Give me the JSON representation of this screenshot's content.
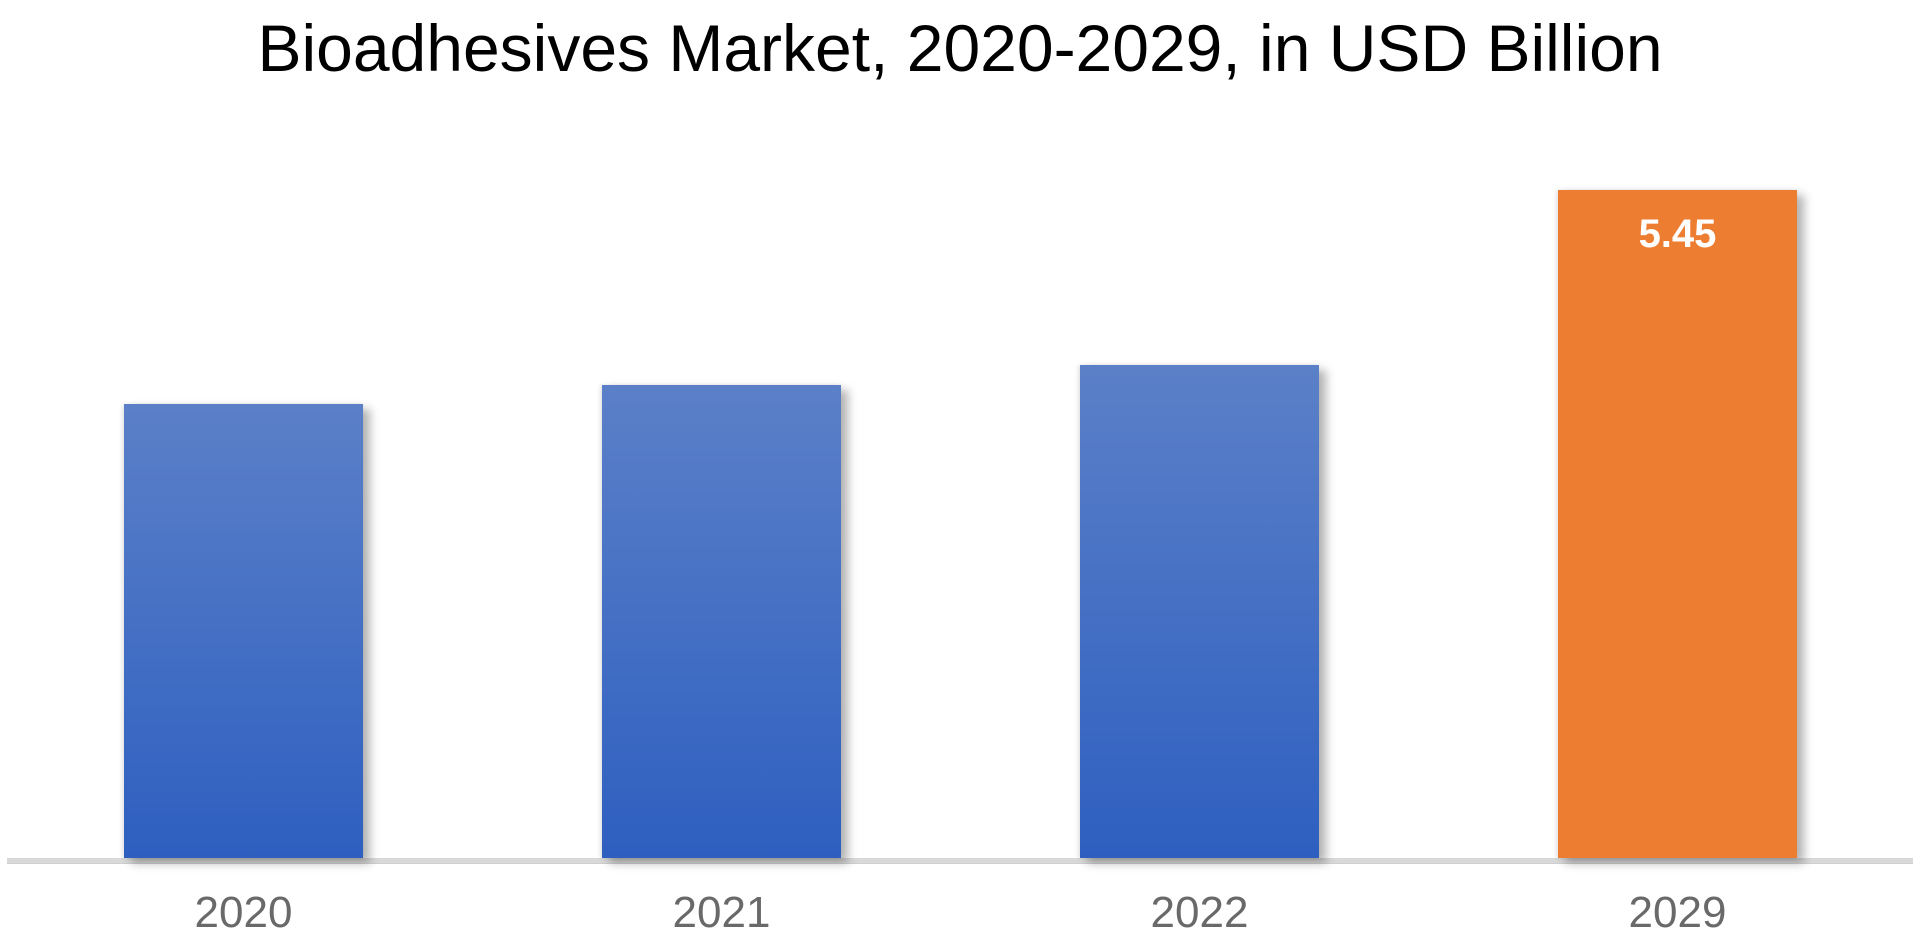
{
  "title": "Bioadhesives Market, 2020-2029, in USD Billion",
  "colors": {
    "title": "#000000",
    "axis_line": "#d9d9d9",
    "x_label": "#696969",
    "data_label": "#ffffff",
    "bar_blue_top": "#5b80c8",
    "bar_blue_bottom": "#2e5fc0",
    "bar_orange": "#ed7d31"
  },
  "chart_data": {
    "type": "bar",
    "title": "Bioadhesives Market, 2020-2029, in USD Billion",
    "categories": [
      "2020",
      "2021",
      "2022",
      "2029"
    ],
    "values": [
      3.7,
      3.86,
      4.02,
      5.45
    ],
    "values_estimated_from_pixels": [
      true,
      true,
      true,
      false
    ],
    "data_labels": [
      "",
      "",
      "",
      "5.45"
    ],
    "bar_colors": [
      "blue",
      "blue",
      "blue",
      "orange"
    ],
    "xlabel": "",
    "ylabel": "",
    "ylim": [
      0,
      5.45
    ],
    "y_axis_visible": false,
    "gridlines": false,
    "legend": false
  }
}
